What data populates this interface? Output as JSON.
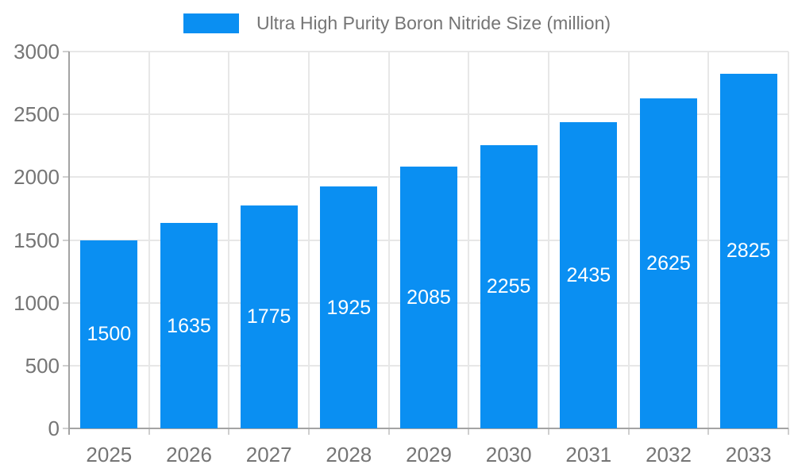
{
  "legend": {
    "label": "Ultra High Purity Boron Nitride Size (million)",
    "swatch_color": "#0a8ff2"
  },
  "chart_data": {
    "type": "bar",
    "title": "Ultra High Purity Boron Nitride Size (million)",
    "categories": [
      "2025",
      "2026",
      "2027",
      "2028",
      "2029",
      "2030",
      "2031",
      "2032",
      "2033"
    ],
    "values": [
      1500,
      1635,
      1775,
      1925,
      2085,
      2255,
      2435,
      2625,
      2825
    ],
    "value_labels": [
      "1500",
      "1635",
      "1775",
      "1925",
      "2085",
      "2255",
      "2435",
      "2625",
      "2825"
    ],
    "xlabel": "",
    "ylabel": "",
    "ylim": [
      0,
      3000
    ],
    "y_ticks": [
      0,
      500,
      1000,
      1500,
      2000,
      2500,
      3000
    ],
    "y_tick_labels": [
      "0",
      "500",
      "1000",
      "1500",
      "2000",
      "2500",
      "3000"
    ],
    "grid": true,
    "legend_position": "top-center",
    "colors": {
      "bar": "#0a8ff2",
      "value_label": "#ffffff",
      "axis_text": "#757575",
      "grid_line": "#e7e7e7",
      "axis_line": "#a3a3a3",
      "tick_line": "#cfcfcf",
      "background": "#ffffff"
    }
  }
}
